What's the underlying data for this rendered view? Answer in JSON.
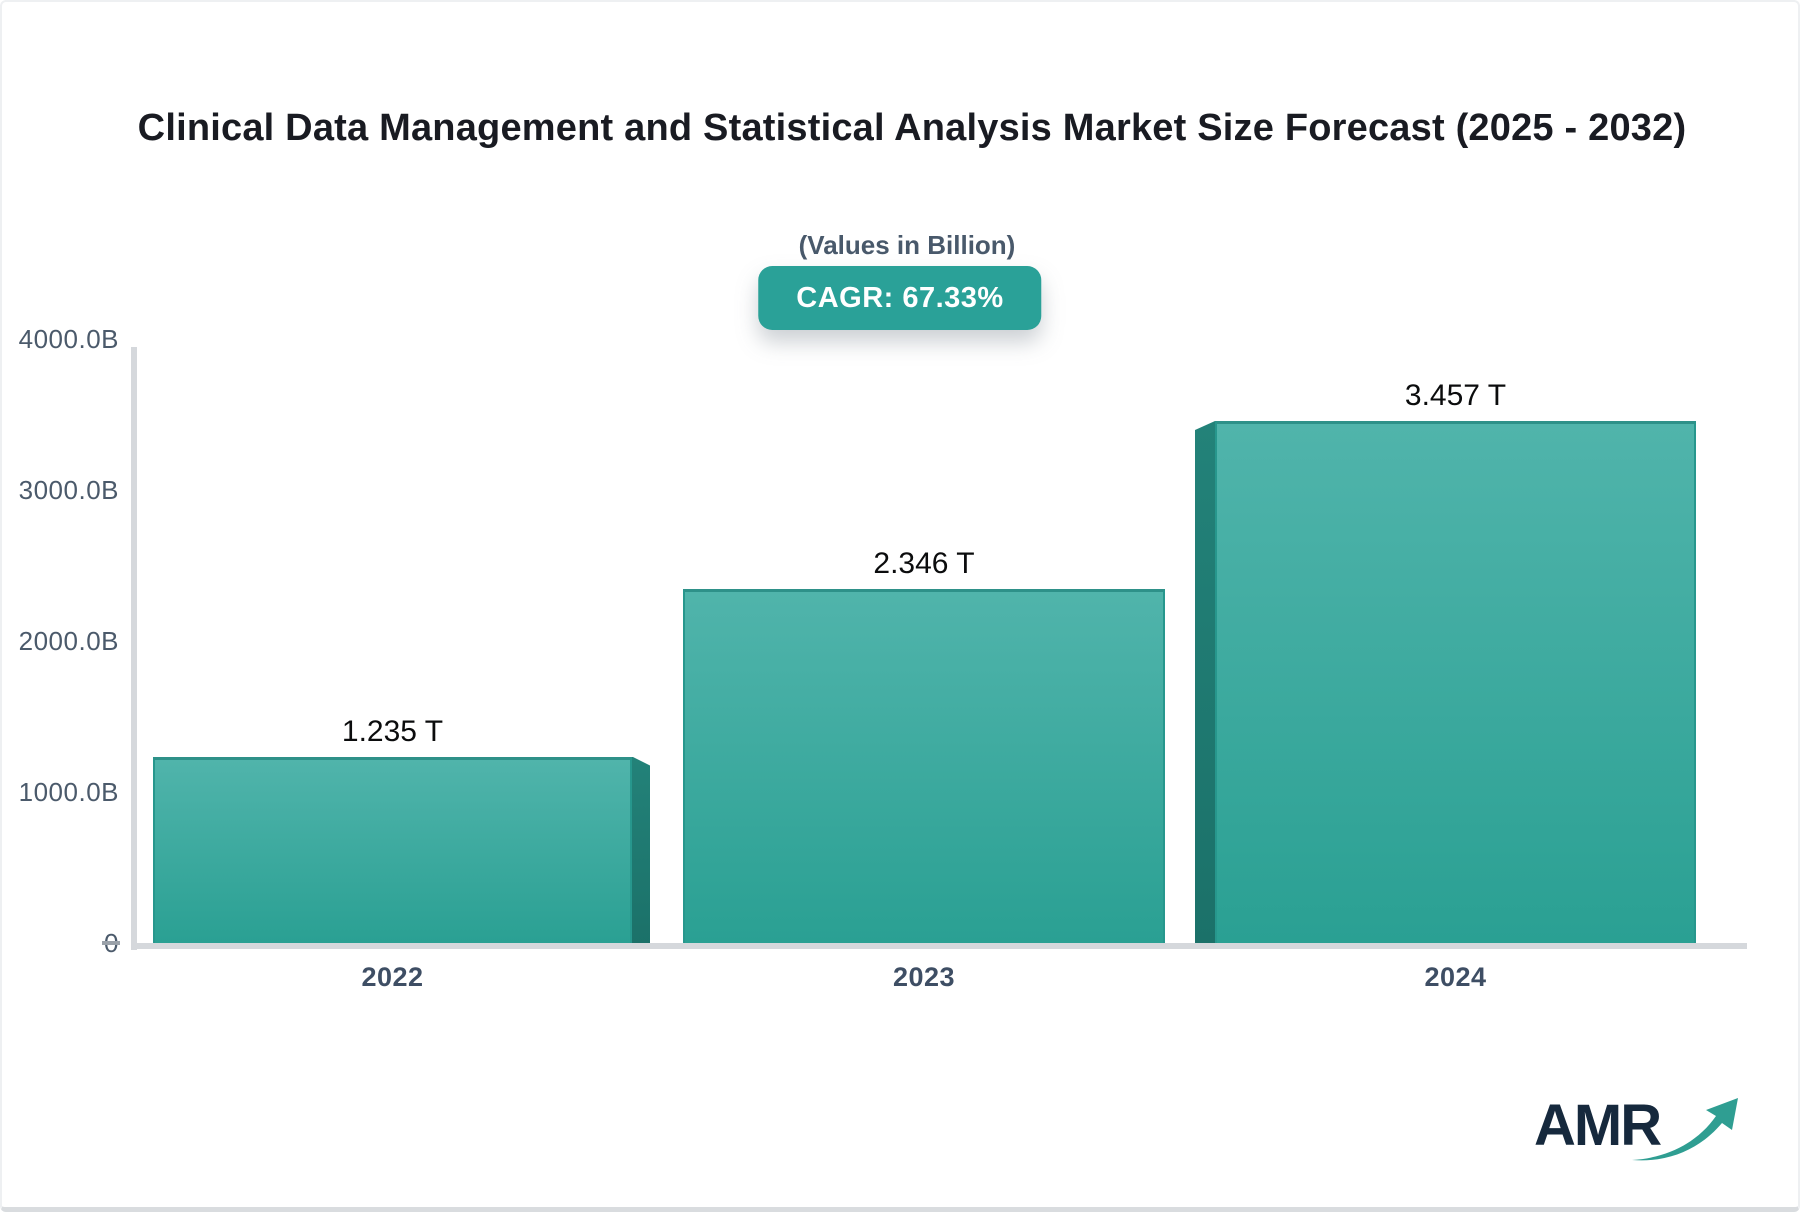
{
  "header": {
    "title": "Clinical Data Management and Statistical Analysis Market Size Forecast (2025 - 2032)",
    "subtitle": "(Values in Billion)",
    "cagr_badge": "CAGR: 67.33%"
  },
  "chart_data": {
    "type": "bar",
    "title": "Clinical Data Management and Statistical Analysis Market Size Forecast (2025 - 2032)",
    "subtitle": "(Values in Billion)",
    "cagr": "67.33%",
    "categories": [
      "2022",
      "2023",
      "2024"
    ],
    "values": [
      1235,
      2346,
      3457
    ],
    "value_labels": [
      "1.235 T",
      "2.346 T",
      "3.457 T"
    ],
    "ylim": [
      0,
      4000
    ],
    "yticks": [
      {
        "value": 4000,
        "label": "4000.0B"
      },
      {
        "value": 3000,
        "label": "3000.0B"
      },
      {
        "value": 2000,
        "label": "2000.0B"
      },
      {
        "value": 1000,
        "label": "1000.0B"
      },
      {
        "value": 0,
        "label": "0"
      }
    ],
    "grid": false,
    "legend": false
  },
  "colors": {
    "bar_gradient_top": "#50b4ab",
    "bar_gradient_bottom": "#2aa093",
    "bar_side": "#1f7e75",
    "badge_background": "#2aa198",
    "badge_text": "#ffffff",
    "axis_line": "#d5d8dc",
    "tick_text": "#4b5a6b",
    "category_text": "#3e4e64",
    "title_text": "#191b22",
    "subtitle_text": "#49596b",
    "logo_text": "#16293d",
    "logo_arrow": "#2f9e92"
  },
  "logo": {
    "text": "AMR",
    "arrow_icon": "trend-up-arrow"
  }
}
